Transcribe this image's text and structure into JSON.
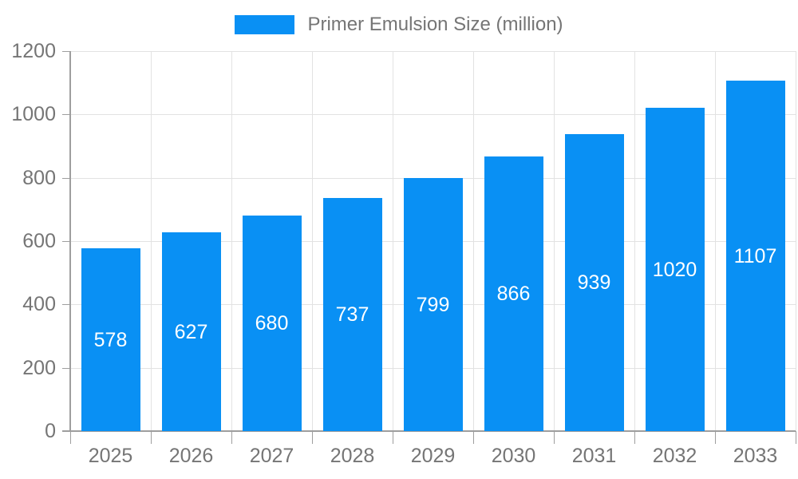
{
  "legend": {
    "label": "Primer Emulsion Size (million)",
    "swatch_color": "#0990f4"
  },
  "chart_data": {
    "type": "bar",
    "title": "",
    "xlabel": "",
    "ylabel": "",
    "categories": [
      "2025",
      "2026",
      "2027",
      "2028",
      "2029",
      "2030",
      "2031",
      "2032",
      "2033"
    ],
    "series": [
      {
        "name": "Primer Emulsion Size (million)",
        "values": [
          578,
          627,
          680,
          737,
          799,
          866,
          939,
          1020,
          1107
        ]
      }
    ],
    "ylim": [
      0,
      1200
    ],
    "yticks": [
      0,
      200,
      400,
      600,
      800,
      1000,
      1200
    ],
    "grid": true,
    "legend_position": "top-center",
    "colors": {
      "bar": "#0990f4",
      "value_label": "#ffffff",
      "axis_text": "#757575",
      "grid_line": "#e2e2e2",
      "axis_line": "#9e9e9e"
    }
  }
}
